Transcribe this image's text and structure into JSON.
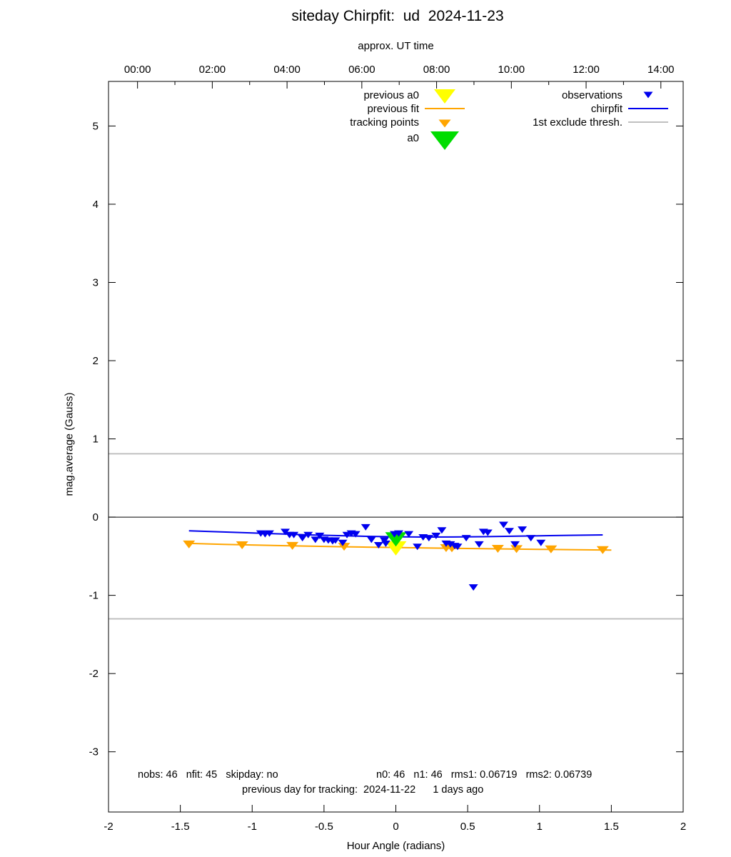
{
  "chart_data": {
    "type": "scatter",
    "title": "siteday Chirpfit:  ud  2024-11-23",
    "x_axis": {
      "label": "Hour Angle (radians)",
      "lim": [
        -2,
        2
      ],
      "ticks": [
        -2,
        -1.5,
        -1,
        -0.5,
        0,
        0.5,
        1,
        1.5,
        2
      ]
    },
    "y_axis": {
      "label": "mag.average (Gauss)",
      "lim": [
        -3.77,
        5.57
      ],
      "ticks": [
        5,
        4,
        3,
        2,
        1,
        0,
        -1,
        -2,
        -3
      ],
      "zero_line": 0
    },
    "top_axis": {
      "label": "approx. UT time",
      "hour0_rad": -1.798,
      "rad_per_hour": 0.2602,
      "major_hours": [
        0,
        2,
        4,
        6,
        8,
        10,
        12,
        14
      ],
      "major_labels": [
        "00:00",
        "02:00",
        "04:00",
        "06:00",
        "08:00",
        "10:00",
        "12:00",
        "14:00"
      ],
      "minor_hours": [
        1,
        3,
        5,
        7,
        9,
        11,
        13
      ]
    },
    "thresholds": {
      "values": [
        0.81,
        -1.3
      ],
      "color": "#c0c0c0"
    },
    "colors": {
      "observations": "#0000ee",
      "chirpfit": "#0000ee",
      "previous_fit": "#ffa500",
      "tracking_points": "#ffa500",
      "previous_a0": "#ffff00",
      "a0": "#00dd00",
      "threshold": "#c0c0c0",
      "zero_line": "#000000"
    },
    "series": {
      "observations": {
        "name": "observations",
        "marker": "tri-small",
        "color": "#0000ee",
        "points": [
          [
            -0.94,
            -0.21
          ],
          [
            -0.91,
            -0.22
          ],
          [
            -0.88,
            -0.21
          ],
          [
            -0.77,
            -0.19
          ],
          [
            -0.74,
            -0.23
          ],
          [
            -0.71,
            -0.23
          ],
          [
            -0.65,
            -0.27
          ],
          [
            -0.61,
            -0.23
          ],
          [
            -0.56,
            -0.29
          ],
          [
            -0.53,
            -0.24
          ],
          [
            -0.5,
            -0.29
          ],
          [
            -0.47,
            -0.3
          ],
          [
            -0.44,
            -0.31
          ],
          [
            -0.42,
            -0.3
          ],
          [
            -0.37,
            -0.33
          ],
          [
            -0.34,
            -0.23
          ],
          [
            -0.31,
            -0.21
          ],
          [
            -0.28,
            -0.22
          ],
          [
            -0.21,
            -0.13
          ],
          [
            -0.17,
            -0.29
          ],
          [
            -0.12,
            -0.36
          ],
          [
            -0.08,
            -0.3
          ],
          [
            -0.07,
            -0.34
          ],
          [
            -0.01,
            -0.22
          ],
          [
            0.02,
            -0.21
          ],
          [
            0.09,
            -0.22
          ],
          [
            0.15,
            -0.38
          ],
          [
            0.19,
            -0.26
          ],
          [
            0.23,
            -0.27
          ],
          [
            0.28,
            -0.24
          ],
          [
            0.32,
            -0.17
          ],
          [
            0.35,
            -0.34
          ],
          [
            0.38,
            -0.35
          ],
          [
            0.41,
            -0.37
          ],
          [
            0.43,
            -0.38
          ],
          [
            0.49,
            -0.27
          ],
          [
            0.54,
            -0.9
          ],
          [
            0.58,
            -0.35
          ],
          [
            0.61,
            -0.19
          ],
          [
            0.64,
            -0.2
          ],
          [
            0.75,
            -0.1
          ],
          [
            0.79,
            -0.18
          ],
          [
            0.83,
            -0.35
          ],
          [
            0.88,
            -0.16
          ],
          [
            0.94,
            -0.27
          ],
          [
            1.01,
            -0.33
          ]
        ]
      },
      "chirpfit": {
        "name": "chirpfit",
        "color": "#0000ee",
        "width": 2,
        "points": [
          [
            -1.44,
            -0.175
          ],
          [
            -1.2,
            -0.19
          ],
          [
            -1.0,
            -0.203
          ],
          [
            -0.8,
            -0.215
          ],
          [
            -0.6,
            -0.227
          ],
          [
            -0.4,
            -0.237
          ],
          [
            -0.2,
            -0.246
          ],
          [
            0,
            -0.252
          ],
          [
            0.2,
            -0.255
          ],
          [
            0.4,
            -0.254
          ],
          [
            0.6,
            -0.25
          ],
          [
            0.8,
            -0.245
          ],
          [
            1.0,
            -0.239
          ],
          [
            1.2,
            -0.233
          ],
          [
            1.44,
            -0.228
          ]
        ]
      },
      "previous_fit": {
        "name": "previous fit",
        "color": "#ffa500",
        "width": 2,
        "points": [
          [
            -1.46,
            -0.335
          ],
          [
            -1.2,
            -0.348
          ],
          [
            -1.0,
            -0.357
          ],
          [
            -0.8,
            -0.364
          ],
          [
            -0.6,
            -0.371
          ],
          [
            -0.4,
            -0.378
          ],
          [
            -0.2,
            -0.384
          ],
          [
            0,
            -0.389
          ],
          [
            0.2,
            -0.394
          ],
          [
            0.4,
            -0.399
          ],
          [
            0.6,
            -0.403
          ],
          [
            0.8,
            -0.408
          ],
          [
            1.0,
            -0.412
          ],
          [
            1.2,
            -0.416
          ],
          [
            1.5,
            -0.422
          ]
        ]
      },
      "tracking_points": {
        "name": "tracking points",
        "marker": "tri-med",
        "color": "#ffa500",
        "points": [
          [
            -1.44,
            -0.35
          ],
          [
            -1.07,
            -0.36
          ],
          [
            -0.72,
            -0.368
          ],
          [
            -0.36,
            -0.379
          ],
          [
            0.01,
            -0.389
          ],
          [
            0.35,
            -0.397
          ],
          [
            0.39,
            -0.399
          ],
          [
            0.71,
            -0.406
          ],
          [
            0.84,
            -0.409
          ],
          [
            1.08,
            -0.413
          ],
          [
            1.44,
            -0.421
          ]
        ]
      },
      "previous_a0": {
        "name": "previous a0",
        "marker": "tri-big",
        "color": "#ffff00",
        "points": [
          [
            0.0,
            -0.4
          ]
        ]
      },
      "a0": {
        "name": "a0",
        "marker": "tri-big",
        "color": "#00dd00",
        "points": [
          [
            0.0,
            -0.285
          ]
        ]
      }
    },
    "legend": {
      "left": [
        {
          "label": "previous a0",
          "swatch": "tri-big",
          "color": "#ffff00"
        },
        {
          "label": "previous fit",
          "swatch": "line",
          "color": "#ffa500"
        },
        {
          "label": "tracking points",
          "swatch": "tri-med",
          "color": "#ffa500"
        },
        {
          "label": "a0",
          "swatch": "tri-xl",
          "color": "#00dd00"
        }
      ],
      "right": [
        {
          "label": "observations",
          "swatch": "tri-small",
          "color": "#0000ee"
        },
        {
          "label": "chirpfit",
          "swatch": "line",
          "color": "#0000ee"
        },
        {
          "label": "1st exclude thresh.",
          "swatch": "line",
          "color": "#c0c0c0"
        }
      ]
    },
    "stats": {
      "line1_left": "nobs: 46   nfit: 45   skipday: no",
      "line1_right": "n0: 46   n1: 46   rms1: 0.06719   rms2: 0.06739",
      "line2": "previous day for tracking:  2024-11-22      1 days ago"
    }
  }
}
